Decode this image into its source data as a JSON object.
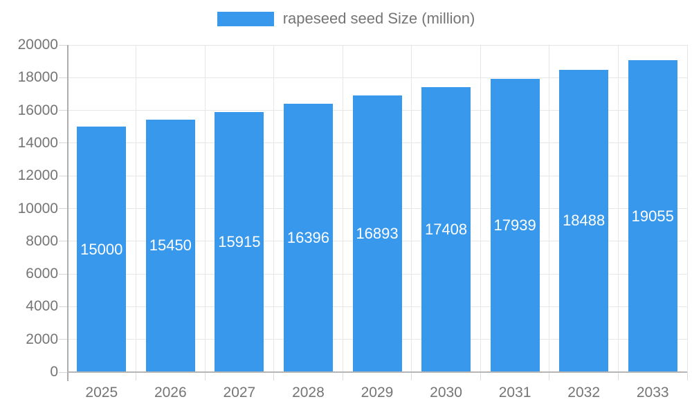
{
  "legend": {
    "label": "rapeseed seed Size (million)",
    "swatch_color": "#3899ec"
  },
  "chart_data": {
    "type": "bar",
    "title": "",
    "xlabel": "",
    "ylabel": "",
    "categories": [
      "2025",
      "2026",
      "2027",
      "2028",
      "2029",
      "2030",
      "2031",
      "2032",
      "2033"
    ],
    "series": [
      {
        "name": "rapeseed seed Size (million)",
        "values": [
          15000,
          15450,
          15915,
          16396,
          16893,
          17408,
          17939,
          18488,
          19055
        ],
        "color": "#3899ec"
      }
    ],
    "value_labels_shown": true,
    "value_label_color": "#ffffff",
    "ylim": [
      0,
      20000
    ],
    "ytick_step": 2000,
    "yticks": [
      0,
      2000,
      4000,
      6000,
      8000,
      10000,
      12000,
      14000,
      16000,
      18000,
      20000
    ],
    "grid": true,
    "legend_position": "top",
    "colors": {
      "axis": "#b0b0b0",
      "gridline": "#e6e6e6",
      "tick": "#d6d6d6",
      "text": "#757575"
    }
  }
}
